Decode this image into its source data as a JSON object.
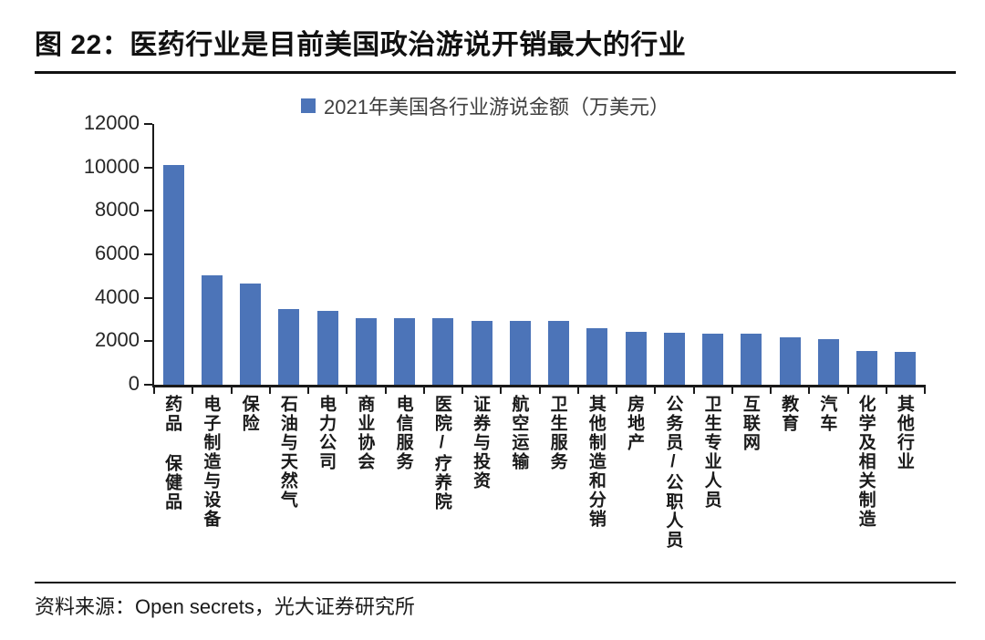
{
  "figure": {
    "title": "图 22：医药行业是目前美国政治游说开销最大的行业",
    "source": "资料来源：Open secrets，光大证券研究所"
  },
  "chart_data": {
    "type": "bar",
    "title": "图 22：医药行业是目前美国政治游说开销最大的行业",
    "legend": [
      "2021年美国各行业游说金额（万美元）"
    ],
    "legend_position": "top-center",
    "bar_color": "#4c74b8",
    "axis_color": "#1a1a1a",
    "grid": false,
    "xlabel": "",
    "ylabel": "",
    "ylim": [
      0,
      12000
    ],
    "yticks": [
      0,
      2000,
      4000,
      6000,
      8000,
      10000,
      12000
    ],
    "categories": [
      "药品 保健品",
      "电子制造与设备",
      "保险",
      "石油与天然气",
      "电力公司",
      "商业协会",
      "电信服务",
      "医院/疗养院",
      "证券与投资",
      "航空运输",
      "卫生服务",
      "其他制造和分销",
      "房地产",
      "公务员/公职人员",
      "卫生专业人员",
      "互联网",
      "教育",
      "汽车",
      "化学及相关制造",
      "其他行业"
    ],
    "values": [
      10100,
      5050,
      4650,
      3500,
      3400,
      3050,
      3050,
      3050,
      2950,
      2950,
      2950,
      2600,
      2450,
      2400,
      2350,
      2350,
      2200,
      2100,
      1550,
      1500
    ]
  }
}
